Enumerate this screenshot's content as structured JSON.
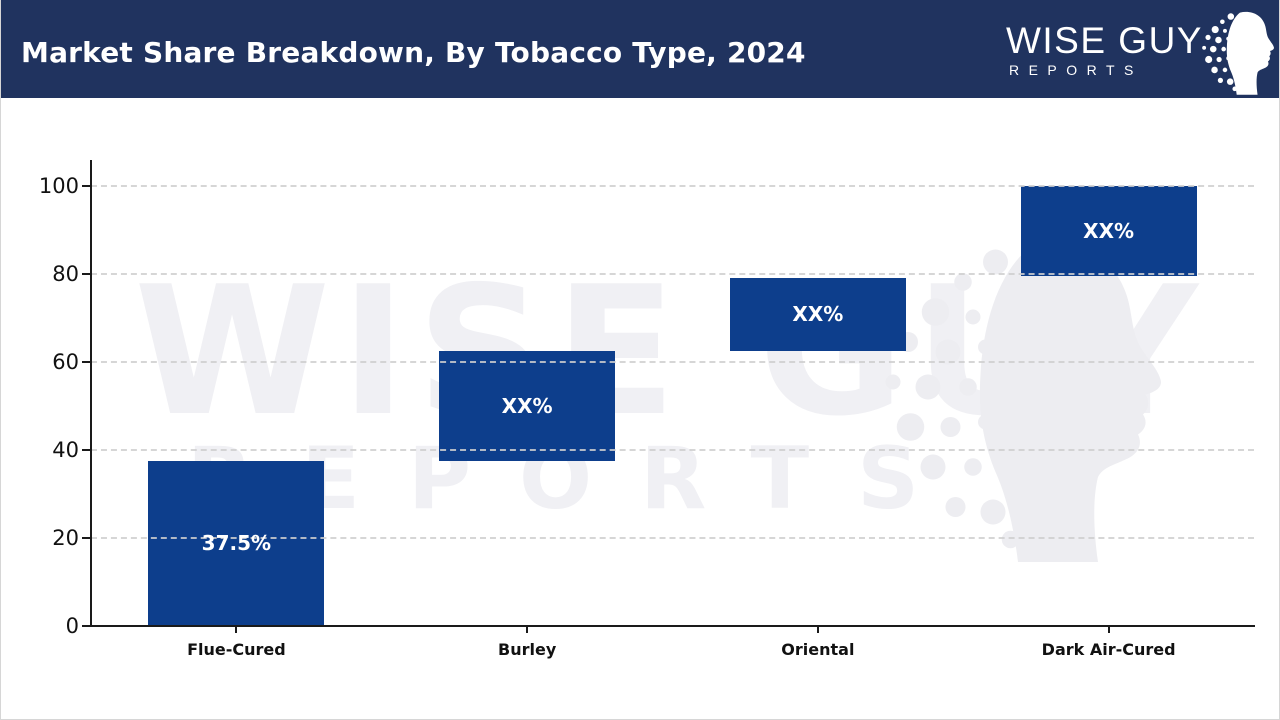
{
  "header": {
    "title": "Market Share Breakdown, By Tobacco Type, 2024",
    "logo": {
      "line1": "WISE GUY",
      "line2": "REPORTS"
    }
  },
  "watermark": {
    "line1": "WISE GUY",
    "line2": "REPORTS"
  },
  "colors": {
    "header_bg": "#20335f",
    "bar": "#0d3e8c",
    "axis": "#1a1a1a",
    "gridline": "#cfcfcf",
    "bar_label": "#ffffff",
    "watermark": "#f0f0f4"
  },
  "chart_data": {
    "type": "bar",
    "subtype": "waterfall",
    "title": "Market Share Breakdown, By Tobacco Type, 2024",
    "categories": [
      "Flue-Cured",
      "Burley",
      "Oriental",
      "Dark Air-Cured"
    ],
    "bars": [
      {
        "category": "Flue-Cured",
        "start": 0,
        "end": 37.5,
        "label": "37.5%"
      },
      {
        "category": "Burley",
        "start": 37.5,
        "end": 62.5,
        "label": "XX%"
      },
      {
        "category": "Oriental",
        "start": 62.5,
        "end": 79,
        "label": "XX%"
      },
      {
        "category": "Dark Air-Cured",
        "start": 79.5,
        "end": 100,
        "label": "XX%"
      }
    ],
    "xlabel": "",
    "ylabel": "",
    "ylim": [
      0,
      105
    ],
    "yticks": [
      0,
      20,
      40,
      60,
      80,
      100
    ],
    "grid": "horizontal-dashed",
    "legend": "none"
  }
}
